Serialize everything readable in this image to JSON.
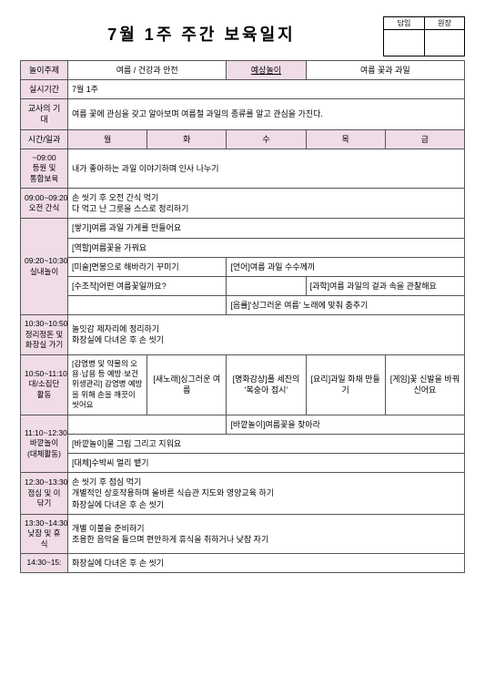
{
  "title": "7월 1주 주간 보육일지",
  "approval": {
    "left": "담임",
    "right": "원장"
  },
  "row_theme": {
    "label": "놀이주제",
    "col1": "여름 / 건강과 안전",
    "col2": "예상놀이",
    "col3": "여름 꽃과 과일"
  },
  "row_period": {
    "label": "실시기간",
    "value": "7월 1주"
  },
  "row_expect": {
    "label": "교사의 기대",
    "value": "여름 꽃에 관심을 갖고 알아보며 여름철 과일의 종류를 알고 관심을 가진다."
  },
  "days": {
    "label": "시간/일과",
    "mon": "월",
    "tue": "화",
    "wed": "수",
    "thu": "목",
    "fri": "금"
  },
  "r1": {
    "t": "~09:00\n등원 및\n통합보육",
    "c": "내가 좋아하는 과일 이야기하며 인사 나누기"
  },
  "r2": {
    "t": "09:00~09:20\n오전 간식",
    "c": "손 씻기 후 오전 간식 먹기\n다 먹고 난 그릇을 스스로 정리하기"
  },
  "indoor": {
    "t": "09:20~10:30\n실내놀이",
    "a": "[쌓기]여름 과일 가게를 만들어요",
    "b": "[역할]여름꽃을 가꿔요",
    "c1": "[미술]면봉으로 해바라기 꾸미기",
    "c2": "[언어]여름 과일 수수께끼",
    "d1": "[수조작]어떤 여름꽃일까요?",
    "d2": "[과학]여름 과일의 겉과 속을 관찰해요",
    "e": "[음률]'싱그러운 여름' 노래에 맞춰 춤추기"
  },
  "r3": {
    "t": "10:30~10:50\n정리정돈 및\n화장실 가기",
    "c": "놀잇감 제자리에 정리하기\n화장실에 다녀온 후 손 씻기"
  },
  "group": {
    "t": "10:50~11:10\n대/소집단\n활동",
    "mon": "[감염병 및 약물의 오용·남용 등 예방·보건위생관리] 감염병 예방을 위해 손을 깨끗이 씻어요",
    "tue": "[새노래]싱그러운 여름",
    "wed": "[명화감상]폴 세잔의 '복숭아 접시'",
    "thu": "[요리]과일 화채 만들기",
    "fri": "[게임]꽃 신발을 바꿔 신어요"
  },
  "out": {
    "t": "11:10~12:30\n바깥놀이\n(대체활동)",
    "a2": "[바깥놀이]여름꽃을 찾아라",
    "b": "[바깥놀이]물 그림 그리고 지워요",
    "c": "[대체]수박씨 멀리 뱉기"
  },
  "r4": {
    "t": "12:30~13:30\n점심 및 이닦기",
    "c": "손 씻기 후 점심 먹기\n개별적인 상호작용하며 올바른 식습관 지도와 영양교육 하기\n화장실에 다녀온 후 손 씻기"
  },
  "r5": {
    "t": "13:30~14:30\n낮잠 및 휴식",
    "c": "개별 이불을 준비하기\n조용한 음악을 들으며 편안하게 휴식을 취하거나 낮잠 자기"
  },
  "r6": {
    "t": "14:30~15:",
    "c": "화장실에 다녀온 후 손 씻기"
  }
}
